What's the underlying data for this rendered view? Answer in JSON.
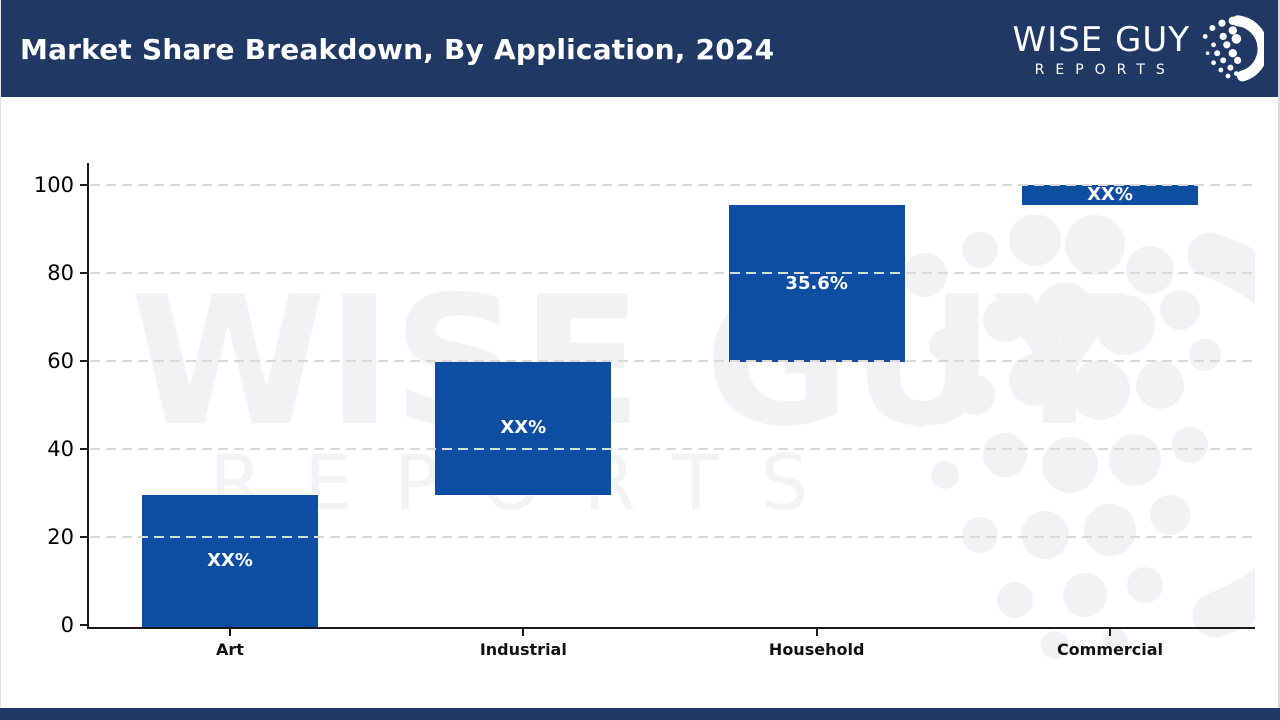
{
  "header": {
    "title": "Market Share Breakdown, By Application, 2024",
    "logo": {
      "brand": "WISE GUY",
      "sub": "REPORTS"
    }
  },
  "watermark": {
    "brand": "WISE GUY",
    "sub": "REPORTS"
  },
  "chart_data": {
    "type": "bar",
    "subtype": "floating-waterfall",
    "title": "Market Share Breakdown, By Application, 2024",
    "categories": [
      "Art",
      "Industrial",
      "Household",
      "Commercial"
    ],
    "series": [
      {
        "name": "Market share by application (%)",
        "segments": [
          {
            "category": "Art",
            "from": 0,
            "to": 29.6,
            "label": "XX%"
          },
          {
            "category": "Industrial",
            "from": 29.6,
            "to": 59.8,
            "label": "XX%"
          },
          {
            "category": "Household",
            "from": 59.8,
            "to": 95.4,
            "label": "35.6%"
          },
          {
            "category": "Commercial",
            "from": 95.4,
            "to": 100,
            "label": "XX%"
          }
        ]
      }
    ],
    "ylim": [
      0,
      105
    ],
    "yticks": [
      0,
      20,
      40,
      60,
      80,
      100
    ],
    "grid": {
      "horizontal": true,
      "style": "dashed"
    },
    "legend": "none",
    "colors": {
      "bar": "#0d4ea3",
      "bar_label": "#ffffff",
      "grid": "#d9d9d9",
      "axis": "#1a1a1a",
      "tick_label": "#000000",
      "header_bg": "#203864",
      "watermark": "#f2f2f5"
    }
  }
}
